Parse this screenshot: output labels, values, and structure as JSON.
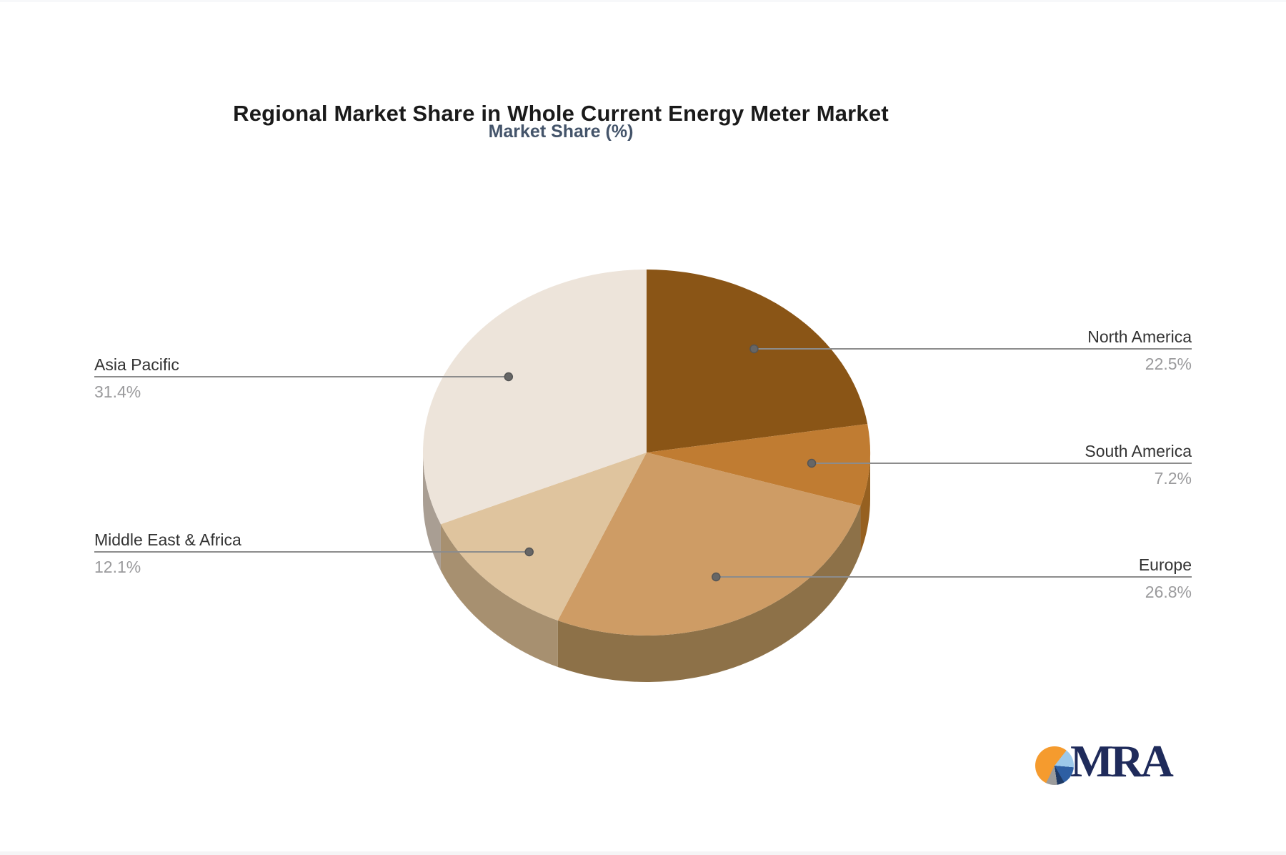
{
  "chart_data": {
    "type": "pie",
    "style": "pie-3d",
    "title": "Regional Market Share in Whole Current Energy Meter Market",
    "subtitle": "Market Share (%)",
    "legend_position": "callout-labels",
    "label_name_color": "#333333",
    "label_value_color": "#9a9a9c",
    "leader_line_color": "#8c8c8c",
    "slices": [
      {
        "label": "North America",
        "value": 22.5,
        "display": "22.5%",
        "color": "#8a5516",
        "side_color": "#6e4312",
        "label_side": "right"
      },
      {
        "label": "South America",
        "value": 7.2,
        "display": "7.2%",
        "color": "#c07c32",
        "side_color": "#966020",
        "label_side": "right"
      },
      {
        "label": "Europe",
        "value": 26.8,
        "display": "26.8%",
        "color": "#ce9c65",
        "side_color": "#8d7148",
        "label_side": "right"
      },
      {
        "label": "Middle East & Africa",
        "value": 12.1,
        "display": "12.1%",
        "color": "#dfc49e",
        "side_color": "#a79070",
        "label_side": "left"
      },
      {
        "label": "Asia Pacific",
        "value": 31.4,
        "display": "31.4%",
        "color": "#ede4da",
        "side_color": "#a99e93",
        "label_side": "left"
      }
    ]
  },
  "branding": {
    "logo_text": "MRA",
    "logo_text_color": "#1f2b5b",
    "logo_pie_colors": [
      "#f59b2e",
      "#9dc9ea",
      "#2e5fa3",
      "#1e3a66",
      "#9c9c9c"
    ]
  }
}
